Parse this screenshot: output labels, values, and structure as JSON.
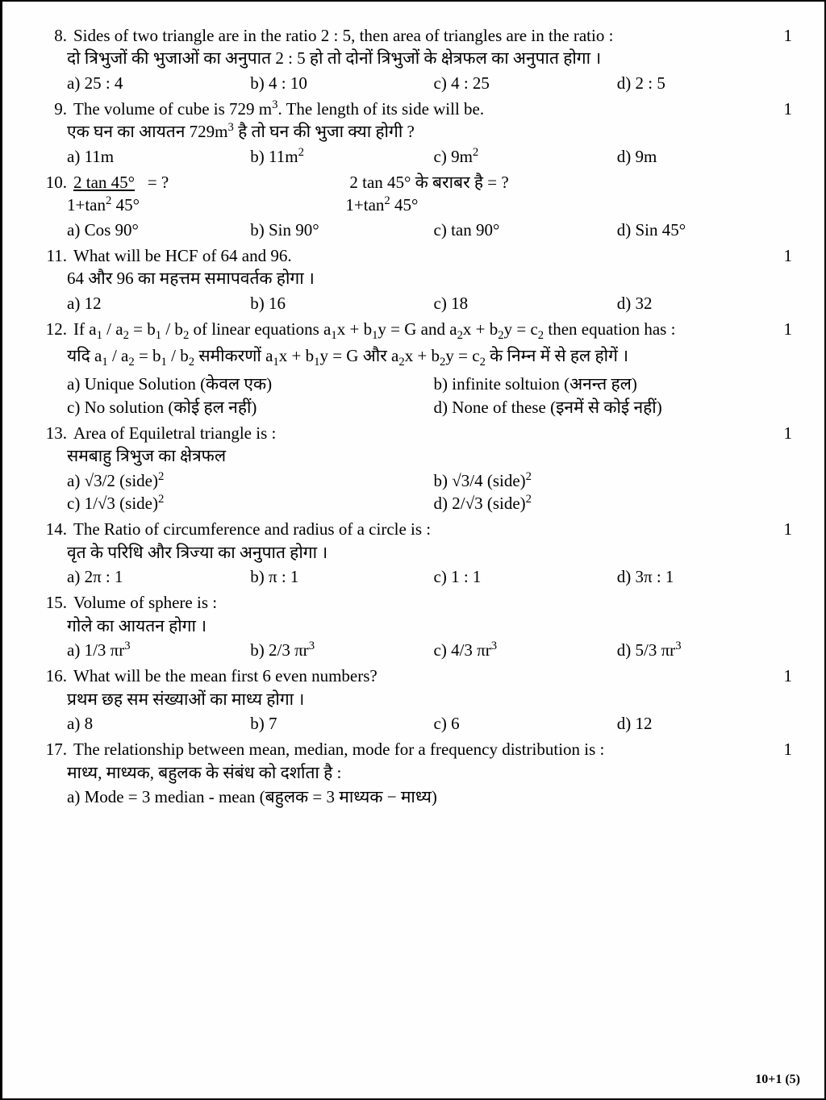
{
  "q8": {
    "num": "8.",
    "en": "Sides of two triangle are in the ratio 2 : 5, then area of triangles are in the ratio :",
    "hi": "दो त्रिभुजों की भुजाओं का अनुपात 2 : 5 हो तो दोनों त्रिभुजों के क्षेत्रफल का अनुपात होगा ।",
    "marks": "1",
    "a": "a)  25 : 4",
    "b": "b)  4 : 10",
    "c": "c)  4 : 25",
    "d": "d)  2 : 5"
  },
  "q9": {
    "num": "9.",
    "en_pre": "The volume of cube is 729 m",
    "en_sup": "3",
    "en_post": ". The length of its side will be.",
    "hi_pre": "एक घन का आयतन 729m",
    "hi_sup": "3",
    "hi_post": " है तो घन की भुजा क्या होगी ?",
    "marks": "1",
    "a": "a)  11m",
    "b_pre": "b)  11m",
    "b_sup": "2",
    "c_pre": "c)  9m",
    "c_sup": "2",
    "d": "d)  9m"
  },
  "q10": {
    "num": "10.",
    "lhs_top": "2 tan 45°",
    "eq": "=  ?",
    "rhs_top": "2 tan 45°  के बराबर है = ?",
    "lhs_bot_pre": "1+tan",
    "lhs_bot_sup": "2",
    "lhs_bot_post": " 45°",
    "rhs_bot_pre": "1+tan",
    "rhs_bot_sup": "2",
    "rhs_bot_post": " 45°",
    "a": "a)  Cos 90°",
    "b": "b)  Sin 90°",
    "c": "c)  tan 90°",
    "d": "d)  Sin 45°"
  },
  "q11": {
    "num": "11.",
    "en": "What will be HCF of 64 and 96.",
    "hi": "64 और 96 का महत्तम समापवर्तक होगा ।",
    "marks": "1",
    "a": "a)  12",
    "b": "b)  16",
    "c": "c)  18",
    "d": "d)  32"
  },
  "q12": {
    "num": "12.",
    "en_parts": [
      "If a",
      "1",
      " / a",
      "2",
      " = b",
      "1",
      " / b",
      "2",
      "  of linear equations a",
      "1",
      "x + b",
      "1",
      "y = G and a",
      "2",
      "x + b",
      "2",
      "y = c",
      "2",
      " then equation has :"
    ],
    "hi_parts": [
      "यदि a",
      "1",
      " / a",
      "2",
      " = b",
      "1",
      " / b",
      "2",
      "  समीकरणों a",
      "1",
      "x + b",
      "1",
      "y = G और a",
      "2",
      "x + b",
      "2",
      "y = c",
      "2",
      " के निम्न में से हल होगें ।"
    ],
    "marks": "1",
    "a": "a)  Unique Solution (केवल एक)",
    "b": "b)  infinite soltuion (अनन्त हल)",
    "c": "c)  No solution (कोई हल नहीं)",
    "d": "d)  None of these (इनमें से कोई नहीं)"
  },
  "q13": {
    "num": "13.",
    "en": "Area of Equiletral triangle is :",
    "hi": "समबाहु त्रिभुज का क्षेत्रफल",
    "marks": "1",
    "a_pre": "a)  √3/2 (side)",
    "a_sup": "2",
    "b_pre": "b)  √3/4 (side)",
    "b_sup": "2",
    "c_pre": "c)  1/√3 (side)",
    "c_sup": "2",
    "d_pre": "d)  2/√3 (side)",
    "d_sup": "2"
  },
  "q14": {
    "num": "14.",
    "en": "The Ratio of circumference and radius of a circle is :",
    "hi": "वृत के परिधि और त्रिज्या का अनुपात होगा ।",
    "marks": "1",
    "a": "a)  2π : 1",
    "b": "b)  π : 1",
    "c": "c)  1 : 1",
    "d": "d)  3π : 1"
  },
  "q15": {
    "num": "15.",
    "en": "Volume of sphere is :",
    "hi": "गोले का आयतन होगा ।",
    "a_pre": "a)  1/3 πr",
    "a_sup": "3",
    "b_pre": "b)  2/3 πr",
    "b_sup": "3",
    "c_pre": "c)  4/3 πr",
    "c_sup": "3",
    "d_pre": "d)  5/3 πr",
    "d_sup": "3"
  },
  "q16": {
    "num": "16.",
    "en": "What will be the mean first 6 even numbers?",
    "hi": "प्रथम छह सम संख्याओं का माध्य होगा ।",
    "marks": "1",
    "a": "a)  8",
    "b": "b)  7",
    "c": "c)  6",
    "d": "d)  12"
  },
  "q17": {
    "num": "17.",
    "en": "The relationship between mean, median, mode for a frequency distribution is :",
    "hi": "माध्य, माध्यक, बहुलक के संबंध को दर्शाता है :",
    "marks": "1",
    "a": "a)  Mode = 3 median - mean (बहुलक = 3 माध्यक − माध्य)"
  },
  "footer": "10+1 (5)"
}
